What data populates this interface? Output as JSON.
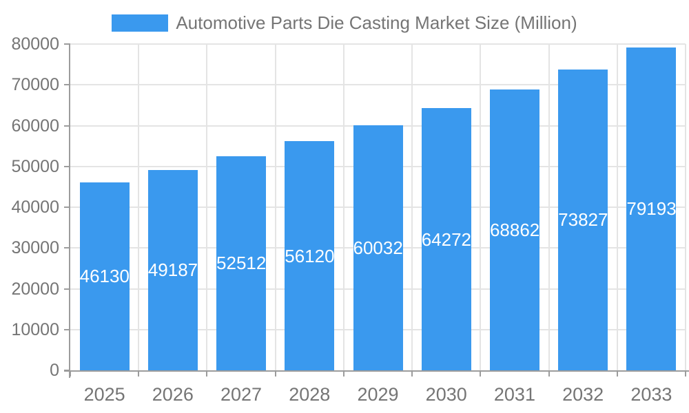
{
  "chart_data": {
    "type": "bar",
    "title": "Automotive Parts Die Casting Market Size (Million)",
    "categories": [
      "2025",
      "2026",
      "2027",
      "2028",
      "2029",
      "2030",
      "2031",
      "2032",
      "2033"
    ],
    "values": [
      46130,
      49187,
      52512,
      56120,
      60032,
      64272,
      68862,
      73827,
      79193
    ],
    "ylim": [
      0,
      80000
    ],
    "yticks": [
      0,
      10000,
      20000,
      30000,
      40000,
      50000,
      60000,
      70000,
      80000
    ],
    "xlabel": "",
    "ylabel": "",
    "grid": true,
    "legend_position": "top",
    "bar_label_position": "inside-center"
  },
  "colors": {
    "bar": "#3A99EE",
    "grid": "#E4E4E4",
    "axis": "#9C9C9C",
    "text": "#757575",
    "bar_label": "#FFFFFF",
    "background": "#FFFFFF"
  }
}
